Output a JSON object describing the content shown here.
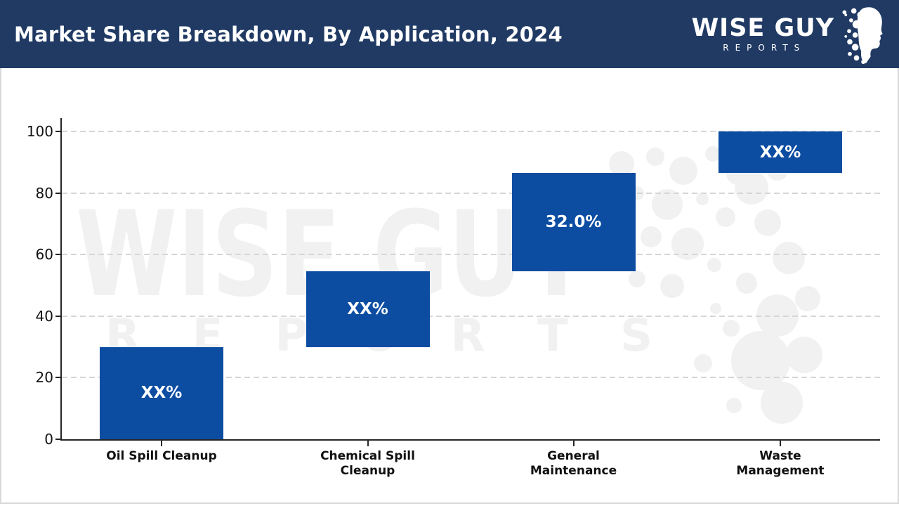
{
  "header": {
    "title": "Market Share Breakdown, By Application, 2024",
    "logo_line1": "WISE GUY",
    "logo_line2": "REPORTS"
  },
  "watermark": {
    "line1": "WISE GUY",
    "line2": "R E P O R T S"
  },
  "colors": {
    "header_bg": "#203A64",
    "bar_fill": "#0C4DA2",
    "bar_label_text": "#FFFFFF",
    "gridline": "#D6D6D6",
    "axis": "#262626",
    "watermark": "#F1F1F2"
  },
  "chart_data": {
    "type": "bar",
    "subtype": "waterfall",
    "title": "Market Share Breakdown, By Application, 2024",
    "categories": [
      "Oil Spill Cleanup",
      "Chemical Spill\nCleanup",
      "General\nMaintenance",
      "Waste Management"
    ],
    "segments": [
      {
        "category": "Oil Spill Cleanup",
        "start": 0,
        "end": 30,
        "value": 30,
        "label": "XX%"
      },
      {
        "category": "Chemical Spill Cleanup",
        "start": 30,
        "end": 54.5,
        "value": 24.5,
        "label": "XX%"
      },
      {
        "category": "General Maintenance",
        "start": 54.5,
        "end": 86.5,
        "value": 32.0,
        "label": "32.0%"
      },
      {
        "category": "Waste Management",
        "start": 86.5,
        "end": 100,
        "value": 13.5,
        "label": "XX%"
      }
    ],
    "yticks": [
      0,
      20,
      40,
      60,
      80,
      100
    ],
    "ylim": [
      0,
      100
    ],
    "xlabel": "",
    "ylabel": "",
    "grid": "dashed-horizontal",
    "legend": "none"
  }
}
